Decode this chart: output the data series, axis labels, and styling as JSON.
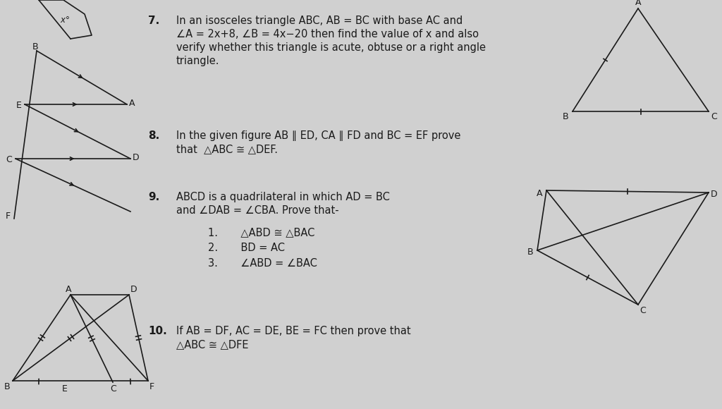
{
  "bg_color": "#d0d0d0",
  "text_color": "#1a1a1a",
  "q7_num": "7.",
  "q8_num": "8.",
  "q9_num": "9.",
  "q10_num": "10.",
  "q7_lines": [
    "In an isosceles triangle ABC, AB = BC with base AC and",
    "∠A = 2x+8, ∠B = 4x−20 then find the value of x and also",
    "verify whether this triangle is acute, obtuse or a right angle",
    "triangle."
  ],
  "q8_lines": [
    "In the given figure AB ∥ ED, CA ∥ FD and BC = EF prove",
    "that  △ABC ≅ △DEF."
  ],
  "q9_lines": [
    "ABCD is a quadrilateral in which AD = BC",
    "and ∠DAB = ∠CBA. Prove that-"
  ],
  "q9_sub": [
    "1.       △ABD ≅ △BAC",
    "2.       BD = AC",
    "3.       ∠ABD = ∠BAC"
  ],
  "q10_lines": [
    "If AB = DF, AC = DE, BE = FC then prove that",
    "△ABC ≅ △DFE"
  ]
}
